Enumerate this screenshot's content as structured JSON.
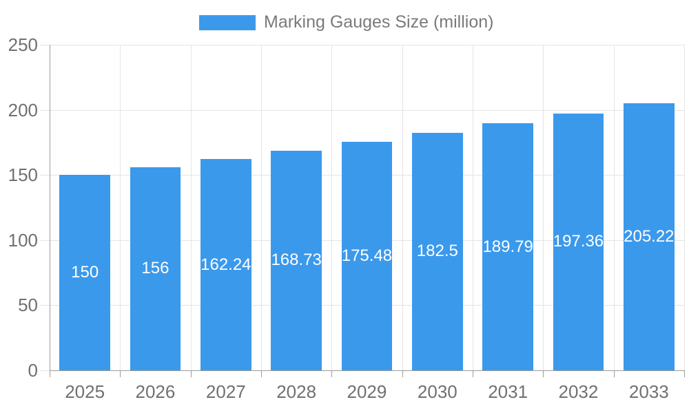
{
  "chart_data": {
    "type": "bar",
    "title": "Marking Gauges Size (million)",
    "categories": [
      "2025",
      "2026",
      "2027",
      "2028",
      "2029",
      "2030",
      "2031",
      "2032",
      "2033"
    ],
    "series": [
      {
        "name": "Marking Gauges Size (million)",
        "values": [
          150,
          156,
          162.24,
          168.73,
          175.48,
          182.5,
          189.79,
          197.36,
          205.22
        ]
      }
    ],
    "xlabel": "",
    "ylabel": "",
    "ylim": [
      0,
      250
    ],
    "yticks": [
      0,
      50,
      100,
      150,
      200,
      250
    ],
    "grid": true,
    "legend_position": "top-center",
    "colors": {
      "bar": "#3B99EC",
      "grid": "#E4E4E4",
      "axis": "#9B9B9B",
      "tick_label": "#707070",
      "title": "#7A7A7A",
      "value_label": "#FFFFFF",
      "background": "#FFFFFF"
    }
  }
}
